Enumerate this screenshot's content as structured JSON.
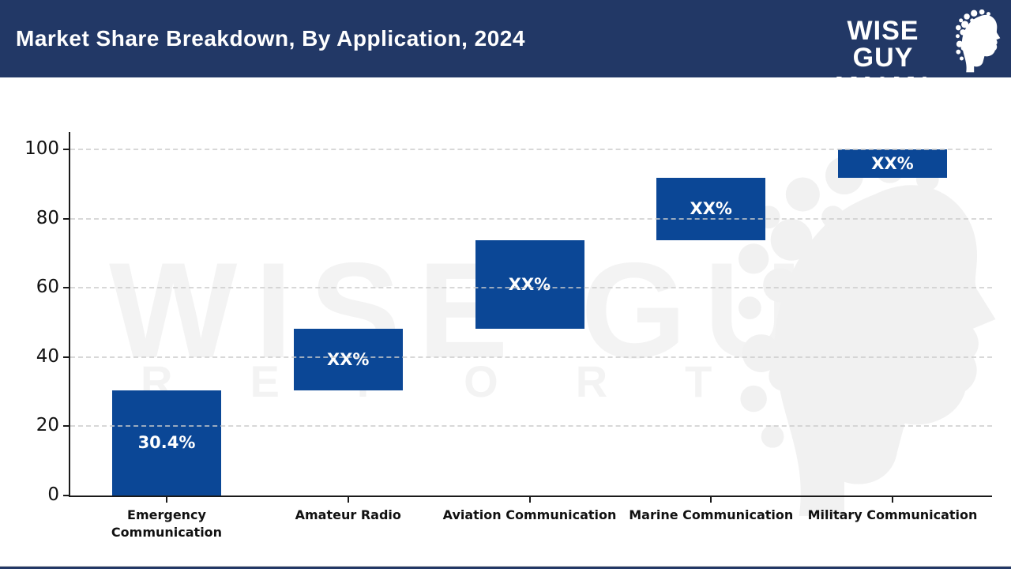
{
  "header": {
    "title": "Market Share Breakdown, By Application, 2024",
    "logo": {
      "line1": "WISE GUY",
      "line2": "REPORTS"
    }
  },
  "watermark": {
    "line1": "WISE GUY",
    "line2": "REPORTS"
  },
  "chart_data": {
    "type": "bar",
    "subtype": "waterfall-floating-bars",
    "title": "Market Share Breakdown, By Application, 2024",
    "categories": [
      "Emergency Communication",
      "Amateur Radio",
      "Aviation Communication",
      "Marine Communication",
      "Military Communication"
    ],
    "segments": [
      {
        "category": "Emergency Communication",
        "start": 0,
        "end": 30.4,
        "label": "30.4%"
      },
      {
        "category": "Amateur Radio",
        "start": 30.4,
        "end": 48.2,
        "label": "XX%"
      },
      {
        "category": "Aviation Communication",
        "start": 48.2,
        "end": 73.8,
        "label": "XX%"
      },
      {
        "category": "Marine Communication",
        "start": 73.8,
        "end": 91.7,
        "label": "XX%"
      },
      {
        "category": "Military Communication",
        "start": 91.7,
        "end": 100,
        "label": "XX%"
      }
    ],
    "values": [
      30.4,
      17.8,
      25.6,
      17.9,
      8.3
    ],
    "bar_labels": [
      "30.4%",
      "XX%",
      "XX%",
      "XX%",
      "XX%"
    ],
    "xlabel": "",
    "ylabel": "",
    "ylim": [
      0,
      105
    ],
    "yticks": [
      0,
      20,
      40,
      60,
      80,
      100
    ],
    "grid": "horizontal-dashed",
    "legend": "none",
    "bar_color": "#0b4796",
    "bar_label_color": "#ffffff",
    "header_color": "#223866",
    "gridline_color": "#cbcbcb",
    "axis_color": "#1a1a1a"
  }
}
